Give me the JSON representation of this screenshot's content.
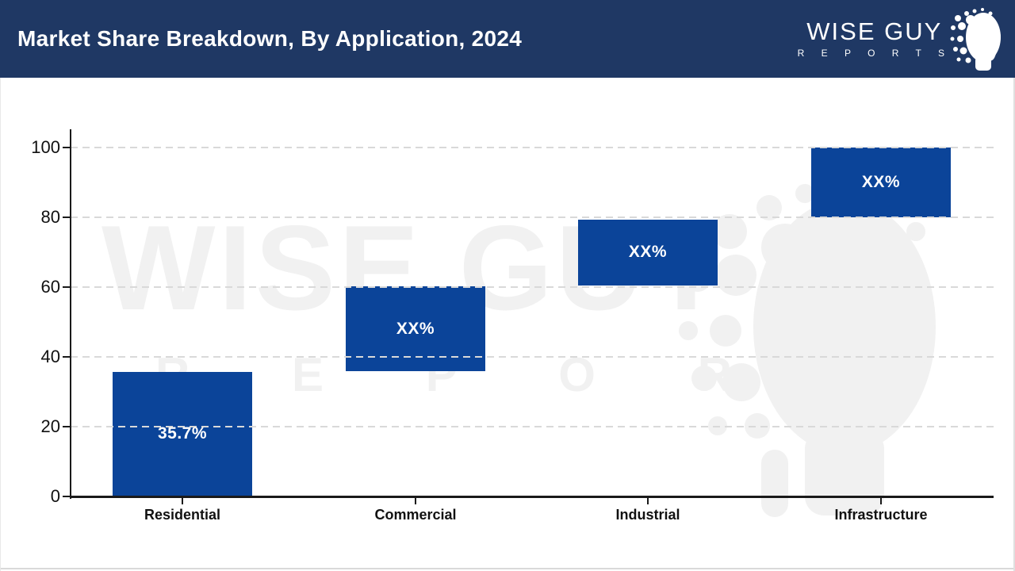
{
  "header": {
    "title": "Market Share Breakdown, By Application, 2024",
    "logo": {
      "line1": "WISE GUY",
      "line2": "R E P O R T S"
    }
  },
  "watermark": {
    "line1": "WISE GUY",
    "line2": "R E P O R T S"
  },
  "colors": {
    "header_navy": "#1f3864",
    "bar_blue": "#0b4499",
    "grid_gray": "#d9d9d9",
    "axis_black": "#1a1a1a",
    "watermark_gray": "#f1f1f1",
    "label_white": "#ffffff"
  },
  "chart_data": {
    "type": "bar",
    "subtype": "waterfall-floating-bars",
    "title": "Market Share Breakdown, By Application, 2024",
    "categories": [
      "Residential",
      "Commercial",
      "Industrial",
      "Infrastructure"
    ],
    "series": [
      {
        "name": "Market Share %",
        "segments": [
          {
            "category": "Residential",
            "plotted_start": 0,
            "plotted_end": 35.7,
            "label": "35.7%"
          },
          {
            "category": "Commercial",
            "plotted_start": 35.8,
            "plotted_end": 60.1,
            "label": "XX%"
          },
          {
            "category": "Industrial",
            "plotted_start": 60.4,
            "plotted_end": 79.3,
            "label": "XX%"
          },
          {
            "category": "Infrastructure",
            "plotted_start": 79.9,
            "plotted_end": 100,
            "label": "XX%"
          }
        ]
      }
    ],
    "xlabel": "",
    "ylabel": "",
    "yticks": [
      0,
      20,
      40,
      60,
      80,
      100
    ],
    "ylim": [
      0,
      105
    ],
    "grid": "horizontal dashed, drawn over bars",
    "legend": "none"
  }
}
